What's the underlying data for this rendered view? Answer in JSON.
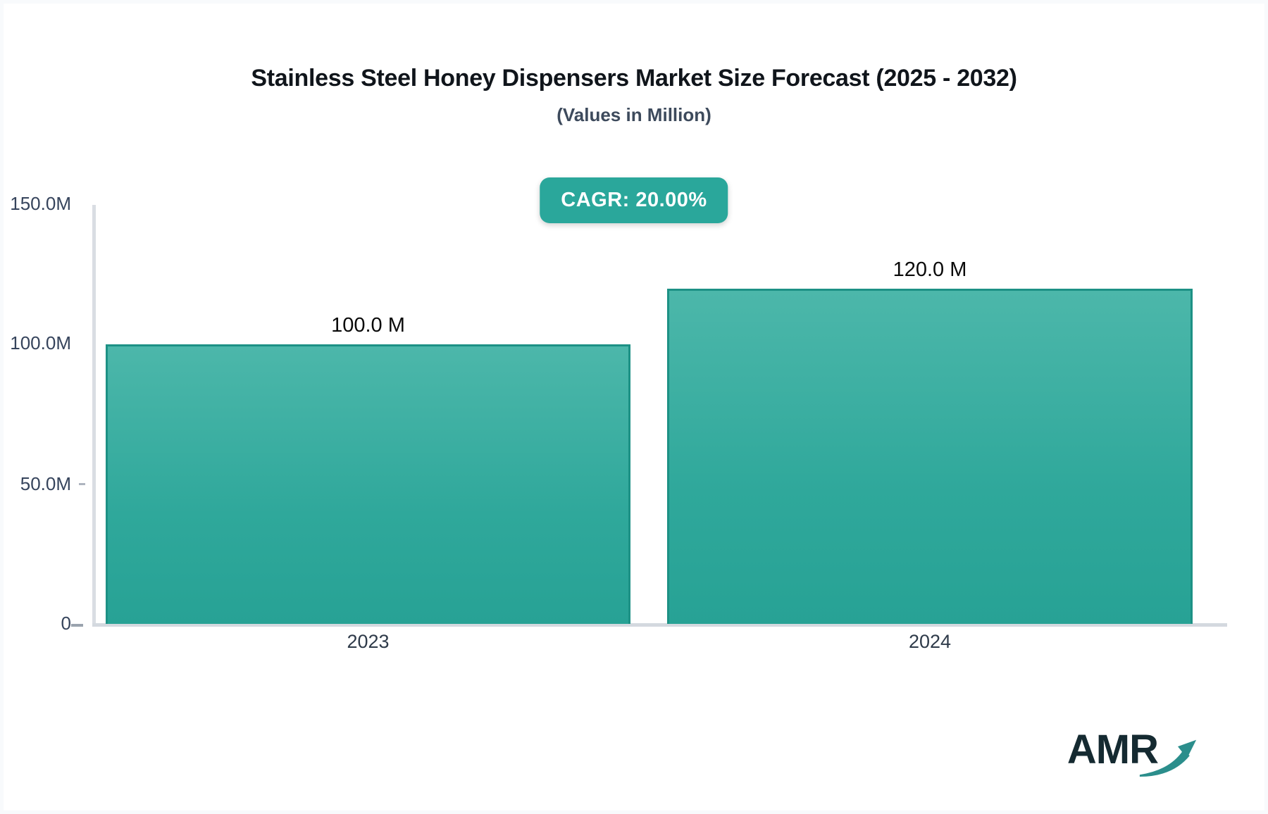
{
  "header": {
    "title": "Stainless Steel Honey Dispensers Market Size Forecast (2025 - 2032)",
    "subtitle": "(Values in Million)",
    "cagr_badge": "CAGR: 20.00%"
  },
  "chart_data": {
    "type": "bar",
    "title": "Stainless Steel Honey Dispensers Market Size Forecast (2025 - 2032)",
    "subtitle": "(Values in Million)",
    "categories": [
      "2023",
      "2024"
    ],
    "values": [
      100,
      120
    ],
    "value_labels": [
      "100.0 M",
      "120.0 M"
    ],
    "unit": "Million",
    "cagr_percent": "20.00%",
    "xlabel": "",
    "ylabel": "",
    "ylim": [
      0,
      150
    ],
    "y_ticks": [
      "150.0M",
      "100.0M",
      "50.0M",
      "0"
    ],
    "grid": false,
    "legend": false,
    "bar_color_top": "#4cb7aa",
    "bar_color_bottom": "#27a295",
    "bar_border_color": "#1d9185"
  },
  "colors": {
    "accent_teal": "#2aa79b",
    "axis_line": "#d4d9df",
    "title_text": "#10151b",
    "subtitle_text": "#3d4a5c",
    "tick_text": "#36445c"
  },
  "branding": {
    "logo_text": "AMR",
    "logo_arrow_icon": "trend-up-arrow",
    "logo_text_color": "#152a31",
    "logo_arrow_color": "#2b8e8c"
  }
}
